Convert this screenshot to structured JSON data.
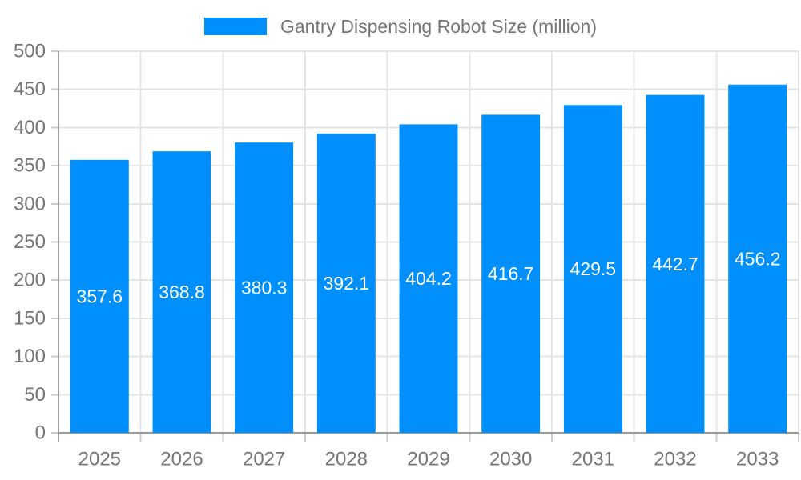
{
  "chart_data": {
    "type": "bar",
    "title": "",
    "legend_entries": [
      "Gantry Dispensing Robot Size (million)"
    ],
    "legend_position": "top",
    "categories": [
      "2025",
      "2026",
      "2027",
      "2028",
      "2029",
      "2030",
      "2031",
      "2032",
      "2033"
    ],
    "series": [
      {
        "name": "Gantry Dispensing Robot Size (million)",
        "values": [
          357.6,
          368.8,
          380.3,
          392.1,
          404.2,
          416.7,
          429.5,
          442.7,
          456.2
        ]
      }
    ],
    "value_labels": [
      "357.6",
      "368.8",
      "380.3",
      "392.1",
      "404.2",
      "416.7",
      "429.5",
      "442.7",
      "456.2"
    ],
    "xlabel": "",
    "ylabel": "",
    "ylim": [
      0,
      500
    ],
    "yticks": [
      0,
      50,
      100,
      150,
      200,
      250,
      300,
      350,
      400,
      450,
      500
    ],
    "grid": true,
    "colors": {
      "bar": "#008FFB",
      "value_label": "#ffffff",
      "axis_text": "#757575",
      "axis_line": "#9a9a9a",
      "gridline": "#e4e4e4",
      "tick": "#cccccc",
      "background": "#ffffff"
    }
  }
}
